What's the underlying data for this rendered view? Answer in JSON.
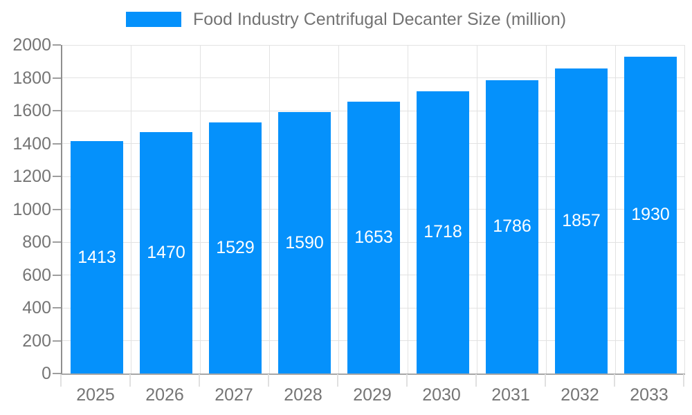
{
  "chart_data": {
    "type": "bar",
    "title": "Food Industry Centrifugal Decanter Size (million)",
    "categories": [
      "2025",
      "2026",
      "2027",
      "2028",
      "2029",
      "2030",
      "2031",
      "2032",
      "2033"
    ],
    "values": [
      1413,
      1470,
      1529,
      1590,
      1653,
      1718,
      1786,
      1857,
      1930
    ],
    "xlabel": "",
    "ylabel": "",
    "ylim": [
      0,
      2000
    ],
    "ytick_step": 200,
    "ytick_labels": [
      "0",
      "200",
      "400",
      "600",
      "800",
      "1000",
      "1200",
      "1400",
      "1600",
      "1800",
      "2000"
    ],
    "grid": true,
    "legend_position": "top",
    "value_labels": "inside-center",
    "colors": {
      "bar": "#0591fb",
      "bar_value_text": "#ffffff",
      "axis_text": "#757575",
      "title_text": "#737373",
      "grid_line": "#e2e2e2",
      "axis_line": "#9e9e9e",
      "background": "#ffffff"
    }
  }
}
